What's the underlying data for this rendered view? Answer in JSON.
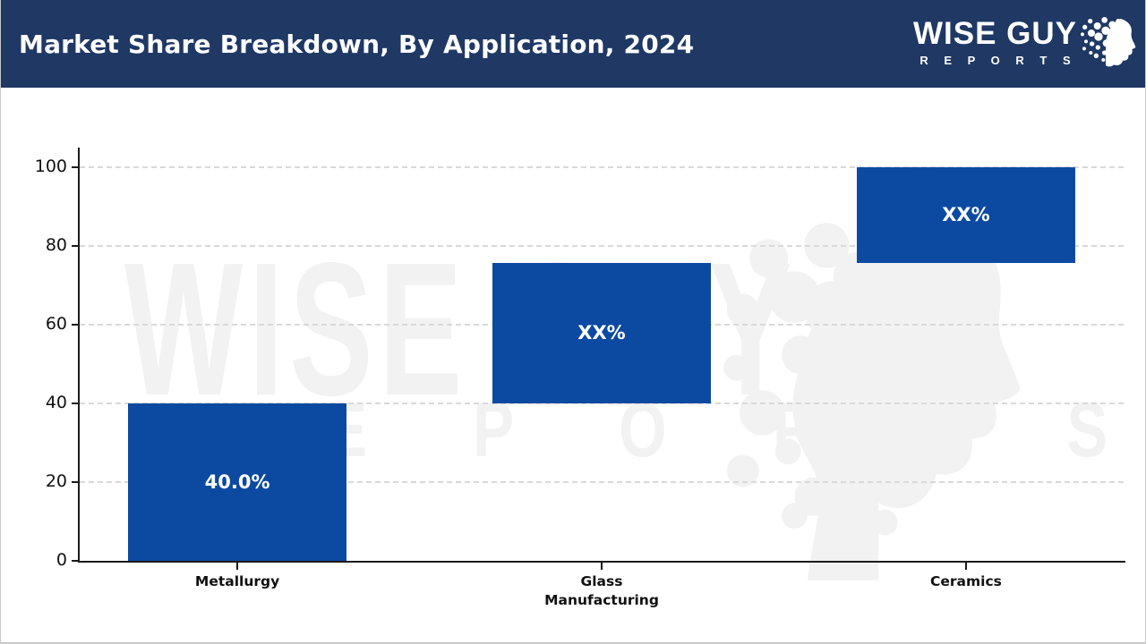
{
  "header": {
    "title": "Market Share Breakdown, By Application, 2024",
    "logo": {
      "line1": "WISE GUY",
      "line2": "R E P O R T S"
    }
  },
  "watermark": {
    "line1": "WISE GUY",
    "line2": "R E P O R T S"
  },
  "colors": {
    "header_bg": "#1f3864",
    "bar": "#0c4aa2",
    "grid": "#d9d9d9",
    "axis": "#1a1a1a",
    "bar_label": "#ffffff",
    "watermark": "#f2f2f2",
    "page_border": "#c8c8c8"
  },
  "chart_data": {
    "type": "bar",
    "subtype": "waterfall",
    "title": "Market Share Breakdown, By Application, 2024",
    "categories": [
      "Metallurgy",
      "Glass\nManufacturing",
      "Ceramics"
    ],
    "segments": [
      {
        "category": "Metallurgy",
        "start": 0,
        "end": 40,
        "label": "40.0%"
      },
      {
        "category": "Glass Manufacturing",
        "start": 40,
        "end": 75.7,
        "label": "XX%"
      },
      {
        "category": "Ceramics",
        "start": 75.7,
        "end": 100,
        "label": "XX%"
      }
    ],
    "yticks": [
      0,
      20,
      40,
      60,
      80,
      100
    ],
    "ylim": [
      0,
      100
    ],
    "xlabel": "",
    "ylabel": "",
    "grid": "horizontal-dashed",
    "legend": "none",
    "bar_value_unit": "%"
  }
}
